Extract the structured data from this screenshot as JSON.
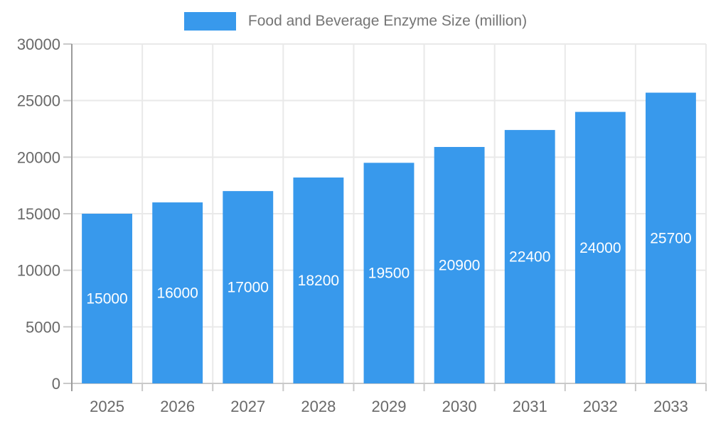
{
  "page": {
    "background_color": "#ffffff"
  },
  "chart_data": {
    "type": "bar",
    "title": "Food and Beverage Enzyme Size (million)",
    "categories": [
      "2025",
      "2026",
      "2027",
      "2028",
      "2029",
      "2030",
      "2031",
      "2032",
      "2033"
    ],
    "series": [
      {
        "name": "Food and Beverage Enzyme Size (million)",
        "values": [
          15000,
          16000,
          17000,
          18200,
          19500,
          20900,
          22400,
          24000,
          25700
        ]
      }
    ],
    "xlabel": "",
    "ylabel": "",
    "ylim": [
      0,
      30000
    ],
    "yticks": [
      0,
      5000,
      10000,
      15000,
      20000,
      25000,
      30000
    ],
    "grid": true,
    "legend_position": "top",
    "value_labels": "inside-center-white",
    "bar_color": "#3899ec",
    "value_label_color": "#ffffff",
    "axis_text_color": "#696969",
    "legend_text_color": "#757575",
    "grid_color": "#e9e9e9",
    "tick_color": "#c9c9c9",
    "axis_line_color": "#9b9b9b"
  }
}
